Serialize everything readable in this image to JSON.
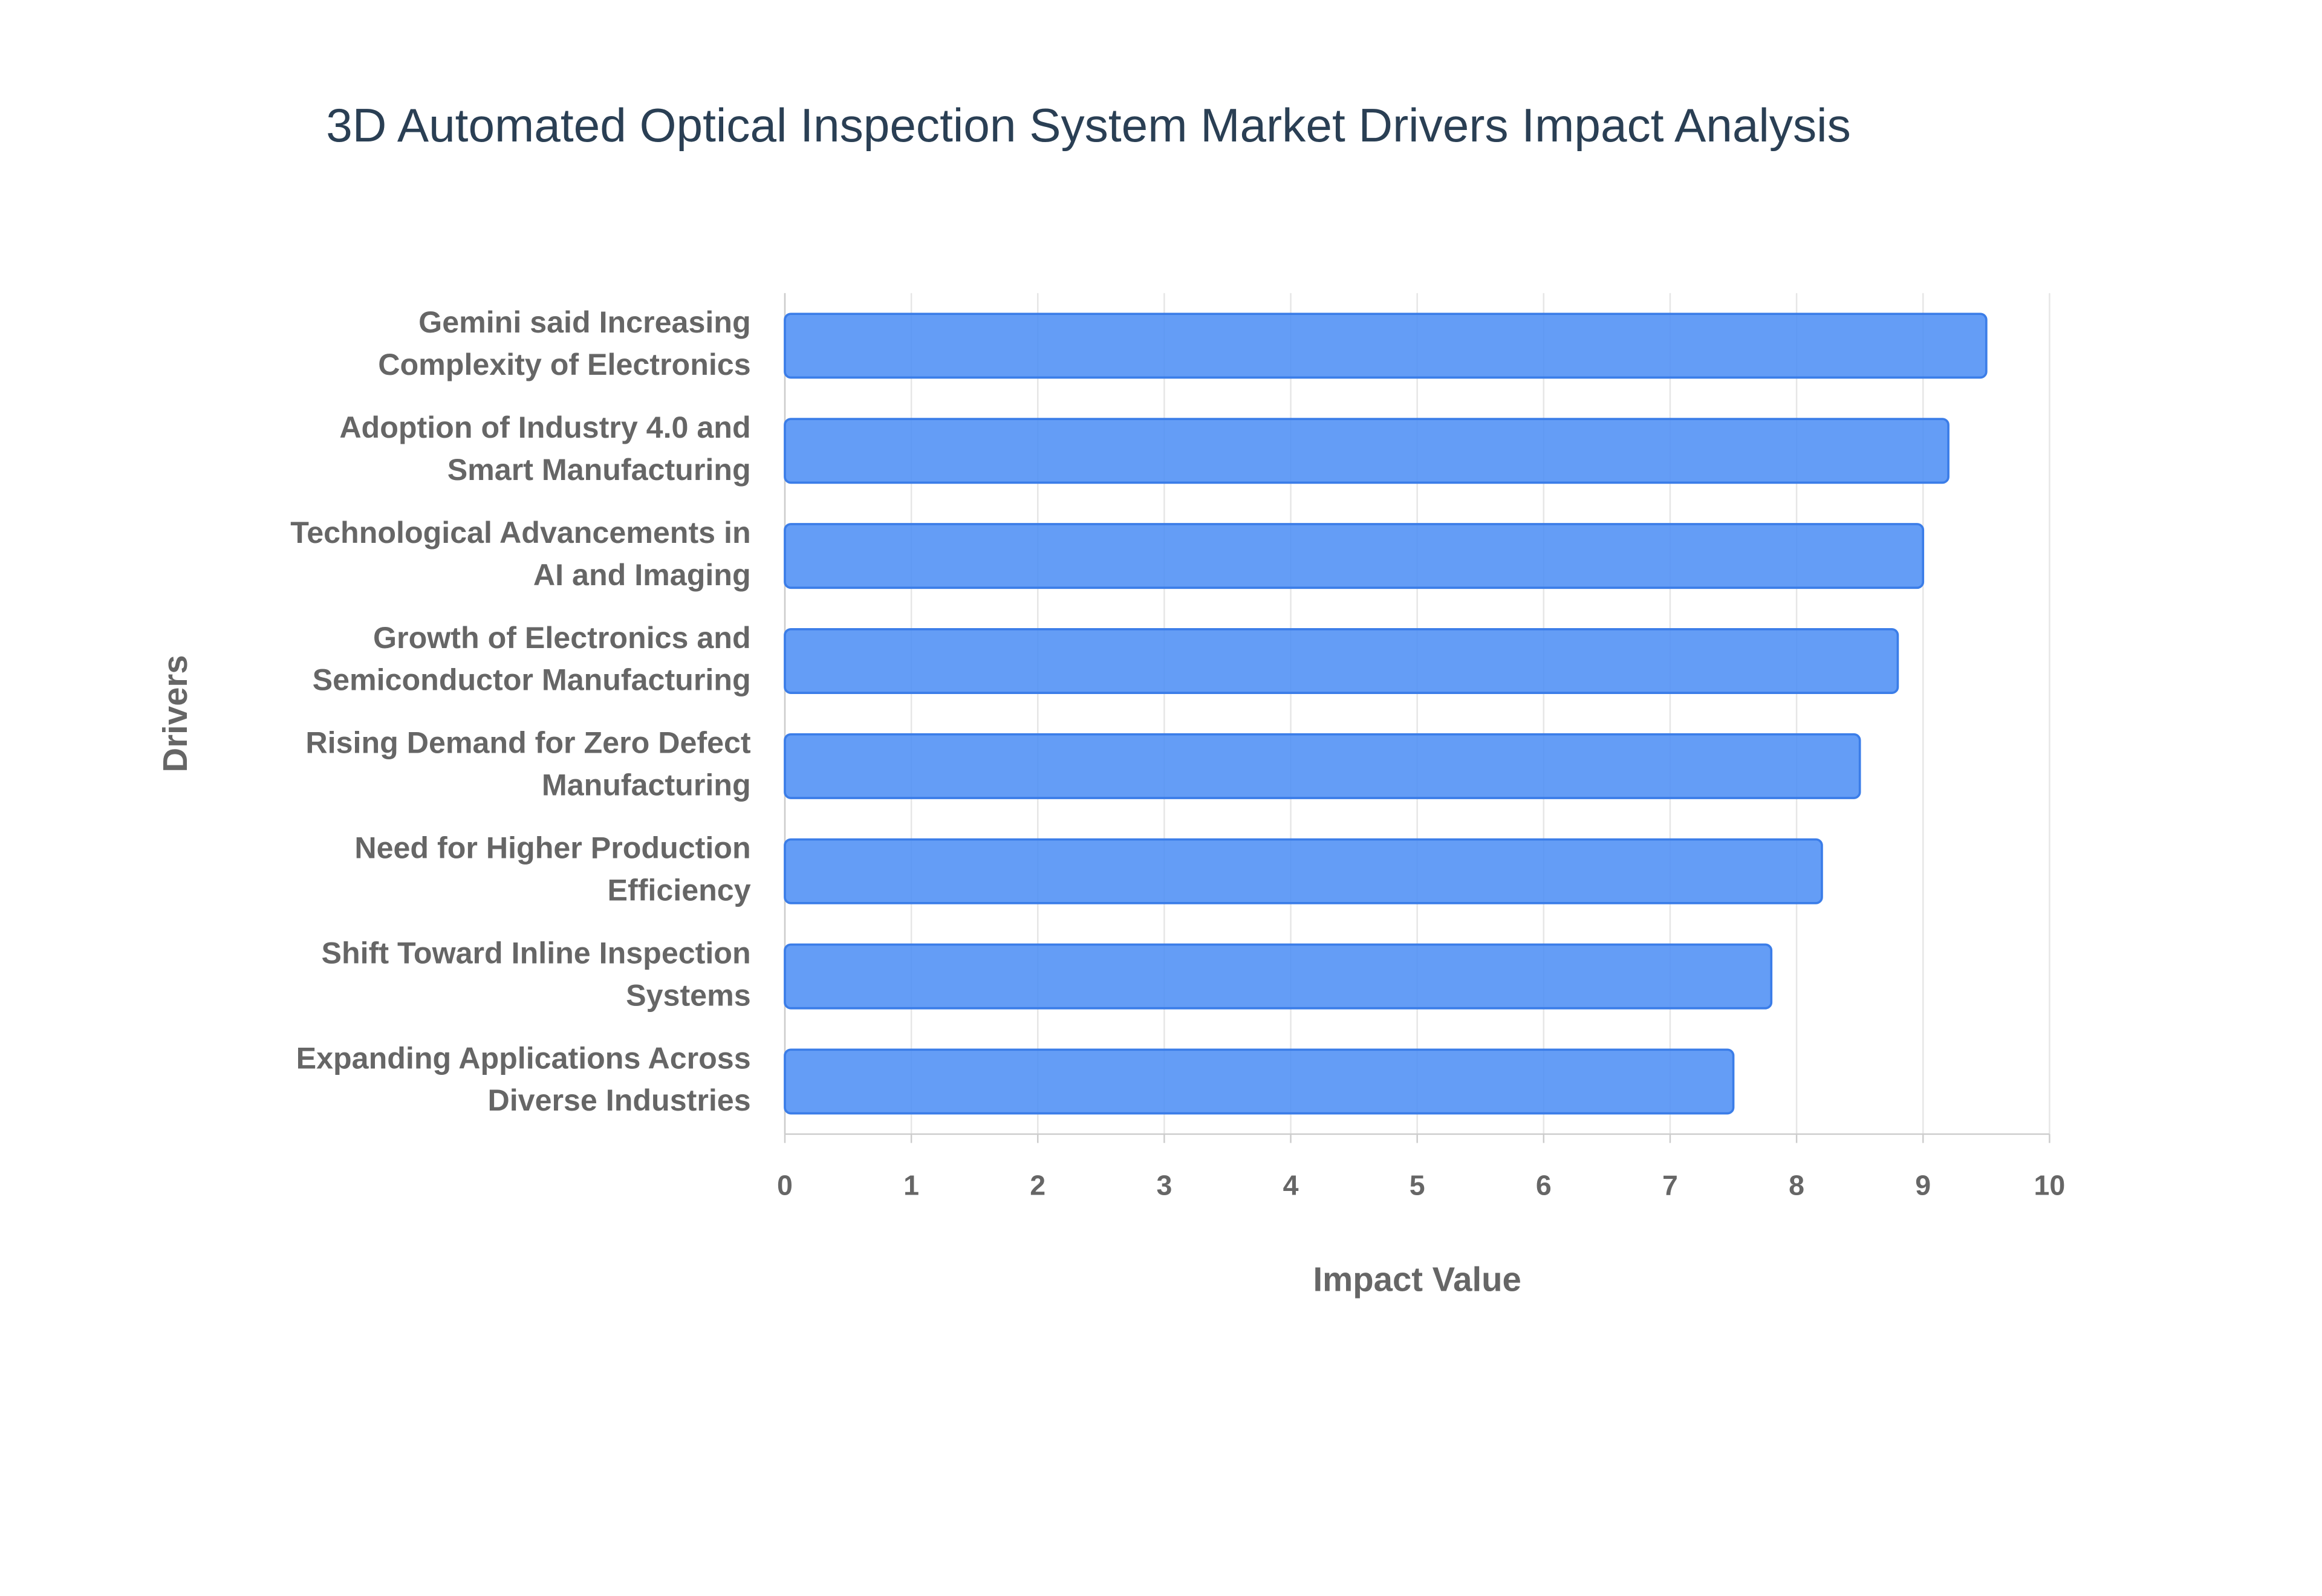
{
  "chart_data": {
    "type": "bar",
    "orientation": "horizontal",
    "title": "3D Automated Optical Inspection System Market Drivers Impact Analysis",
    "x_label": "Impact Value",
    "y_label": "Drivers",
    "categories": [
      [
        "Gemini said Increasing",
        "Complexity of Electronics"
      ],
      [
        "Adoption of Industry 4.0 and",
        "Smart Manufacturing"
      ],
      [
        "Technological Advancements in",
        "AI and Imaging"
      ],
      [
        "Growth of Electronics and",
        "Semiconductor Manufacturing"
      ],
      [
        "Rising Demand for Zero Defect",
        "Manufacturing"
      ],
      [
        "Need for Higher Production",
        "Efficiency"
      ],
      [
        "Shift Toward Inline Inspection",
        "Systems"
      ],
      [
        "Expanding Applications Across",
        "Diverse Industries"
      ]
    ],
    "values": [
      9.5,
      9.2,
      9.0,
      8.8,
      8.5,
      8.2,
      7.8,
      7.5
    ],
    "color": "#4d8ff5",
    "xlim": [
      0,
      10
    ],
    "xticks": [
      0,
      1,
      2,
      3,
      4,
      5,
      6,
      7,
      8,
      9,
      10
    ],
    "grid": true
  }
}
